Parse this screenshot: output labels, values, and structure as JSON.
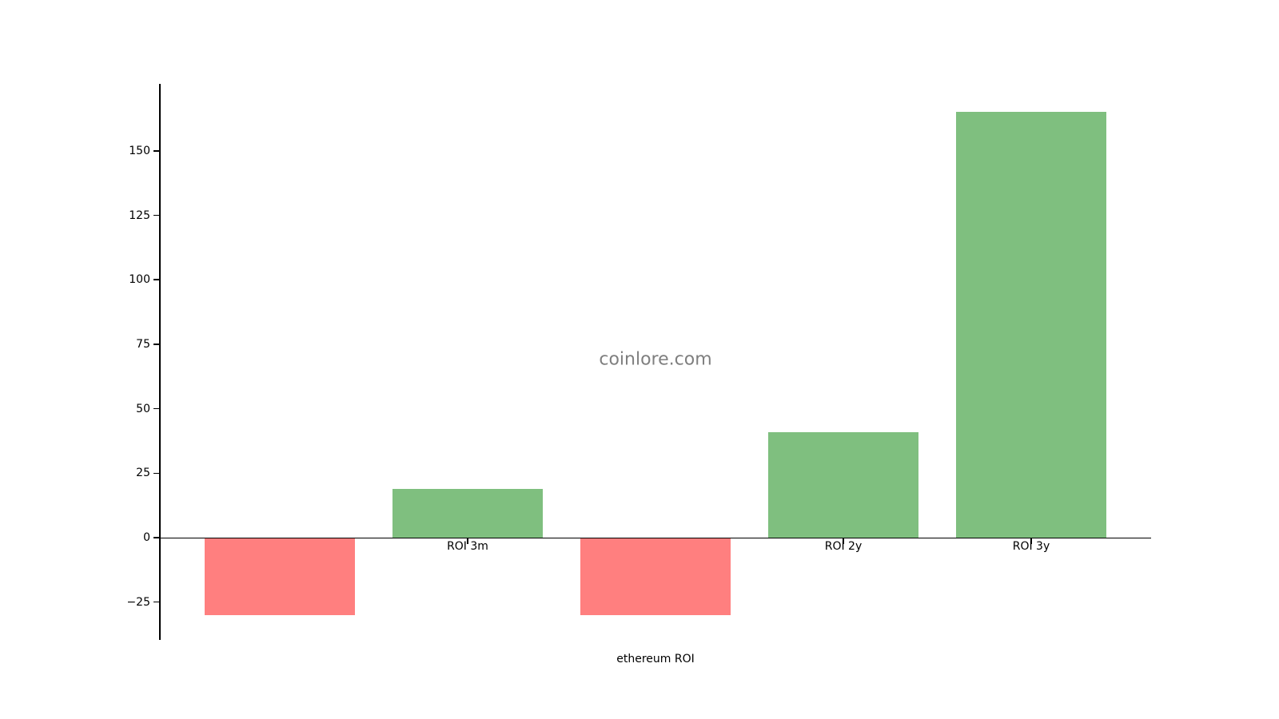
{
  "page": {
    "background_color": "#ffffff"
  },
  "watermark": {
    "text": "coinlore.com",
    "color": "#7f7f7f"
  },
  "xlabel": "ethereum ROI",
  "chart_data": {
    "type": "bar",
    "title": "",
    "xlabel": "ethereum ROI",
    "ylabel": "",
    "categories": [
      "",
      "ROI 3m",
      "",
      "ROI 2y",
      "ROI 3y"
    ],
    "values": [
      -30,
      19,
      -30,
      41,
      165
    ],
    "bar_colors": [
      "#ff7f7f",
      "#7fbf7f",
      "#ff7f7f",
      "#7fbf7f",
      "#7fbf7f"
    ],
    "positive_color": "#7fbf7f",
    "negative_color": "#ff7f7f",
    "yticks": [
      150,
      125,
      100,
      75,
      50,
      25,
      0,
      -25
    ],
    "ytick_labels": [
      "150",
      "125",
      "100",
      "75",
      "50",
      "25",
      "0",
      "−25"
    ],
    "ylim": [
      -39.8,
      175.2
    ],
    "grid": false,
    "legend_position": "none",
    "axis_color": "#000000",
    "watermark": "coinlore.com"
  }
}
